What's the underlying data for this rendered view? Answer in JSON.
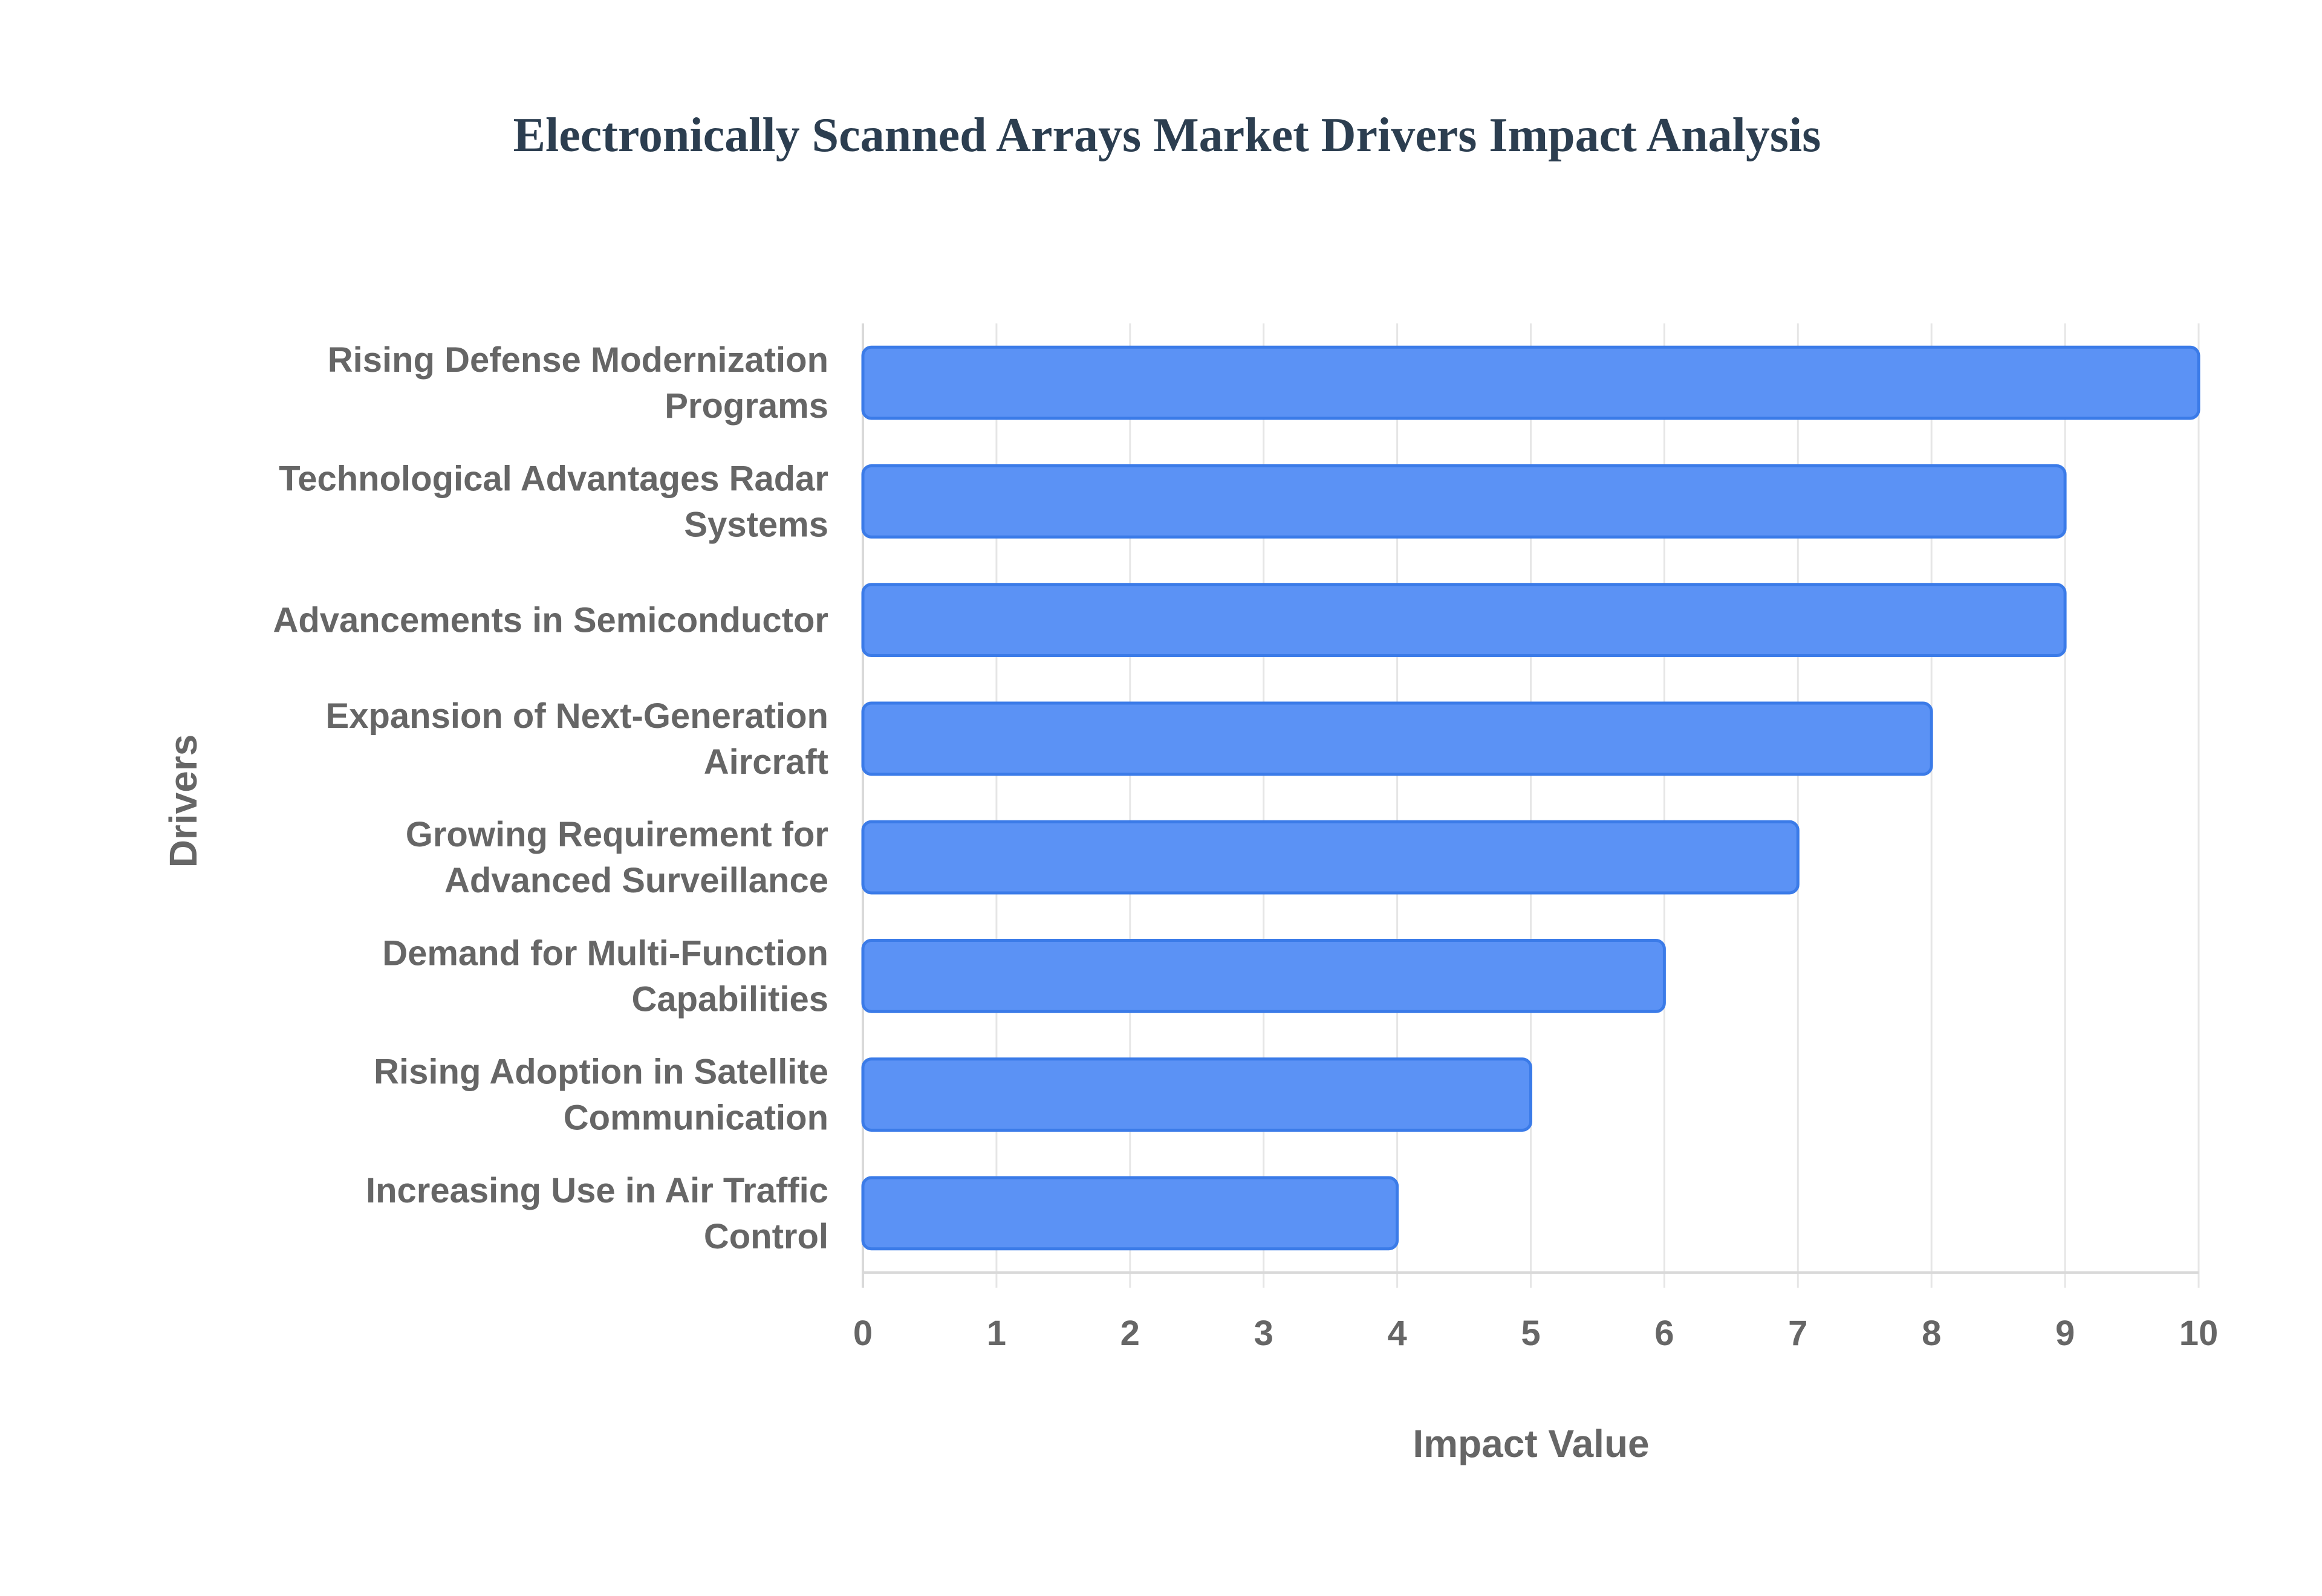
{
  "chart_data": {
    "type": "bar",
    "orientation": "horizontal",
    "title": "Electronically Scanned Arrays Market Drivers Impact Analysis",
    "xlabel": "Impact Value",
    "ylabel": "Drivers",
    "xlim": [
      0,
      10
    ],
    "xticks": [
      "0",
      "1",
      "2",
      "3",
      "4",
      "5",
      "6",
      "7",
      "8",
      "9",
      "10"
    ],
    "grid": true,
    "categories": [
      [
        "Rising Defense Modernization",
        "Programs"
      ],
      [
        "Technological Advantages Radar",
        "Systems"
      ],
      [
        "Advancements in Semiconductor"
      ],
      [
        "Expansion of Next-Generation",
        "Aircraft"
      ],
      [
        "Growing Requirement for",
        "Advanced Surveillance"
      ],
      [
        "Demand for Multi-Function",
        "Capabilities"
      ],
      [
        "Rising Adoption in Satellite",
        "Communication"
      ],
      [
        "Increasing Use in Air Traffic",
        "Control"
      ]
    ],
    "values": [
      10,
      9,
      9,
      8,
      7,
      6,
      5,
      4
    ],
    "colors": {
      "bar_fill": "#5b92f5",
      "bar_stroke": "#3b7be8",
      "title": "#2c3e50",
      "text": "#666666",
      "grid": "#e6e6e6"
    }
  }
}
